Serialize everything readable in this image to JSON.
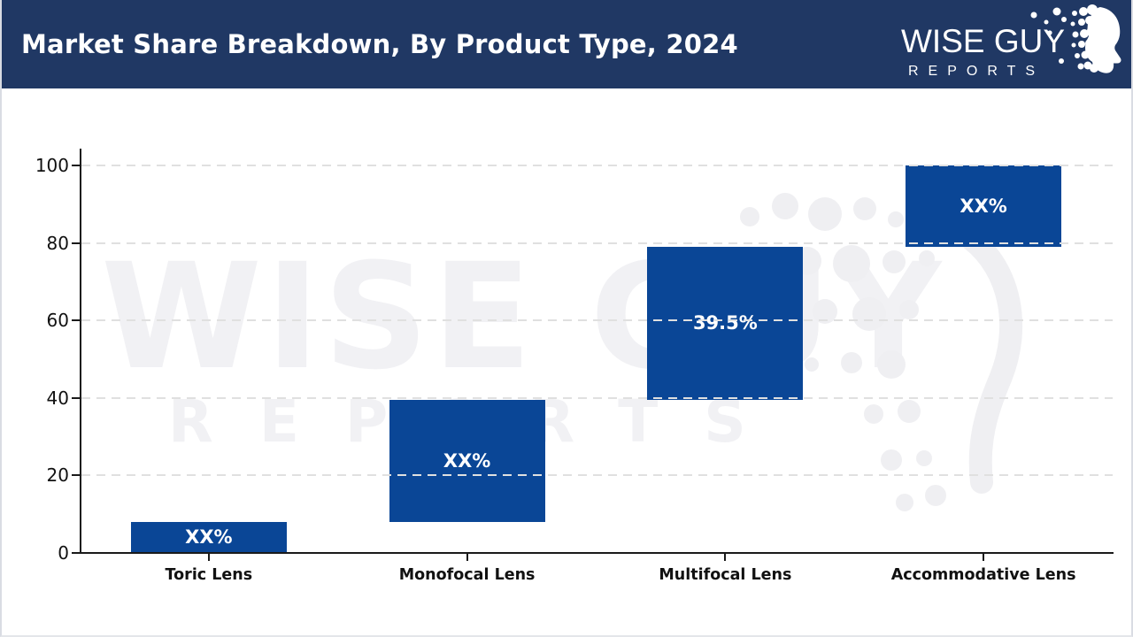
{
  "header": {
    "title": "Market Share Breakdown, By Product Type, 2024",
    "logo": {
      "line1": "WISE GUY",
      "line2": "REPORTS"
    }
  },
  "watermark": {
    "line1": "WISE GUY",
    "line2": "REPORTS"
  },
  "chart_data": {
    "type": "bar",
    "subtype": "waterfall",
    "title": "Market Share Breakdown, By Product Type, 2024",
    "categories": [
      "Toric Lens",
      "Monofocal Lens",
      "Multifocal Lens",
      "Accommodative Lens"
    ],
    "segments": [
      {
        "category": "Toric Lens",
        "start": 0,
        "end": 8,
        "label": "XX%"
      },
      {
        "category": "Monofocal Lens",
        "start": 8,
        "end": 39.5,
        "label": "XX%"
      },
      {
        "category": "Multifocal Lens",
        "start": 39.5,
        "end": 79,
        "label": "39.5%"
      },
      {
        "category": "Accommodative Lens",
        "start": 79,
        "end": 100,
        "label": "XX%"
      }
    ],
    "xlabel": "",
    "ylabel": "",
    "ylim": [
      0,
      100
    ],
    "yticks": [
      0,
      20,
      40,
      60,
      80,
      100
    ],
    "grid": "horizontal dashed, drawn above bars",
    "legend": "none",
    "bar_color": "#0A4696",
    "bar_label_color": "#ffffff"
  },
  "colors": {
    "header_bg": "#203864",
    "header_text": "#ffffff",
    "bar": "#0A4696",
    "grid": "#e0e0e0",
    "axis": "#1a1a1a",
    "watermark": "#f1f1f4",
    "page_bg": "#ffffff"
  }
}
